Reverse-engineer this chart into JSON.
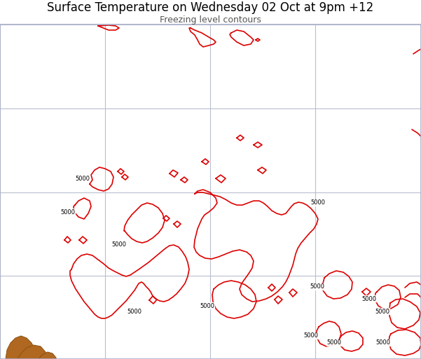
{
  "title": "Surface Temperature on Wednesday 02 Oct at 9pm +12",
  "subtitle": "Freezing level contours",
  "map_bg": "#dce2f0",
  "grid_color": "#b8bece",
  "contour_color": "#dd0000",
  "title_fontsize": 12,
  "subtitle_fontsize": 9,
  "fig_width": 6.01,
  "fig_height": 5.13,
  "dpi": 100,
  "title_bg": "#ffffff",
  "border_color": "#aab0c8",
  "contour_lw": 1.2
}
